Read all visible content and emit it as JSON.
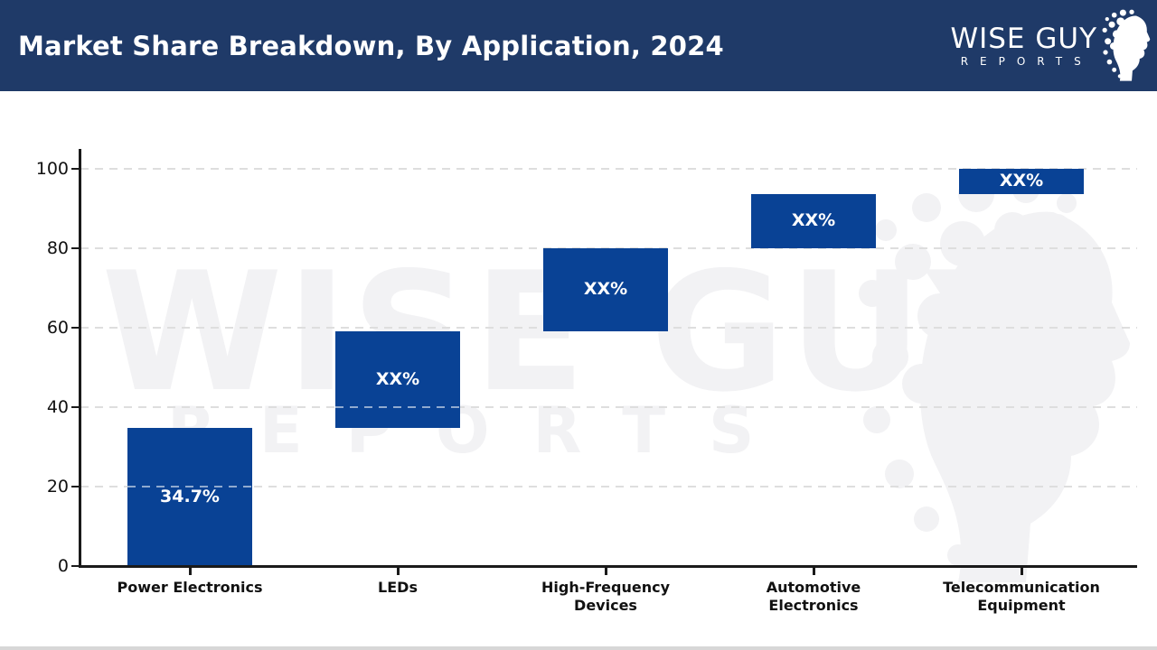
{
  "header": {
    "title": "Market Share Breakdown, By Application, 2024",
    "background_color": "#1f3a68",
    "logo": {
      "line1": "WISE GUY",
      "line2": "REPORTS"
    }
  },
  "watermark": {
    "line1": "WISE GUY",
    "line2": "REPORTS"
  },
  "chart_data": {
    "type": "bar",
    "subtype": "waterfall",
    "title": "Market Share Breakdown, By Application, 2024",
    "xlabel": "",
    "ylabel": "",
    "categories": [
      "Power Electronics",
      "LEDs",
      "High-Frequency Devices",
      "Automotive Electronics",
      "Telecommunication Equipment"
    ],
    "segments": [
      {
        "category": "Power Electronics",
        "start": 0,
        "end": 34.7,
        "label": "34.7%"
      },
      {
        "category": "LEDs",
        "start": 34.7,
        "end": 59.0,
        "label": "XX%"
      },
      {
        "category": "High-Frequency Devices",
        "start": 59.0,
        "end": 80.0,
        "label": "XX%"
      },
      {
        "category": "Automotive Electronics",
        "start": 80.0,
        "end": 93.6,
        "label": "XX%"
      },
      {
        "category": "Telecommunication Equipment",
        "start": 93.6,
        "end": 100.0,
        "label": "XX%"
      }
    ],
    "yticks": [
      0,
      20,
      40,
      60,
      80,
      100
    ],
    "ylim": [
      0,
      105
    ],
    "grid": "dashed horizontal gridlines at y ticks, drawn over bars as light dashes",
    "legend": "none",
    "bar_color": "#094295",
    "bar_label_color": "#ffffff"
  }
}
